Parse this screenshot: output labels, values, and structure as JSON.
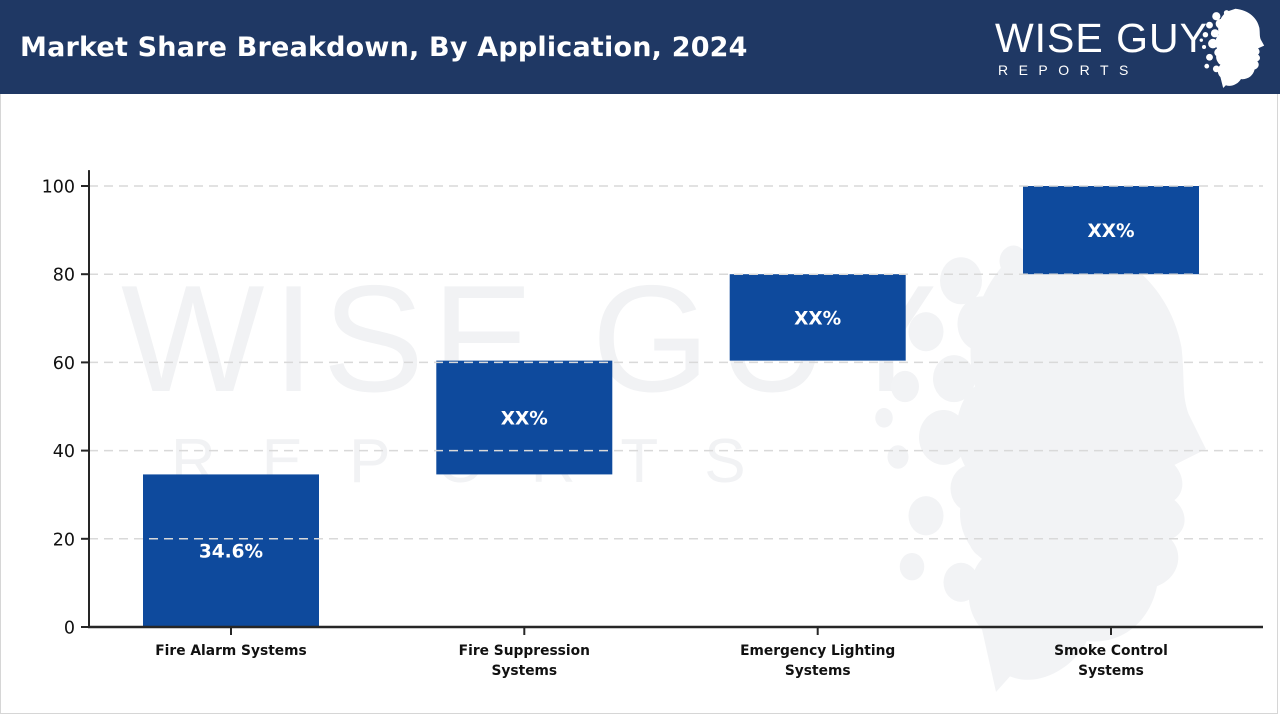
{
  "header": {
    "title": "Market Share Breakdown, By Application, 2024",
    "bg_color": "#1f3864",
    "text_color": "#ffffff",
    "brand": {
      "name": "WISE GUY",
      "sub": "REPORTS",
      "logo_icon": "dotted-head-profile-icon"
    }
  },
  "watermark": {
    "line1": "WISE GUY",
    "line2": "REPORTS",
    "color": "#f1f2f4"
  },
  "chart_data": {
    "type": "bar",
    "subtype": "waterfall-floating-bars",
    "title": "Market Share Breakdown, By Application, 2024",
    "categories": [
      "Fire Alarm Systems",
      "Fire Suppression Systems",
      "Emergency Lighting Systems",
      "Smoke Control Systems"
    ],
    "category_label_lines": [
      [
        "Fire Alarm Systems"
      ],
      [
        "Fire Suppression",
        "Systems"
      ],
      [
        "Emergency Lighting",
        "Systems"
      ],
      [
        "Smoke Control",
        "Systems"
      ]
    ],
    "segments": [
      {
        "category": "Fire Alarm Systems",
        "start": 0,
        "end": 34.6,
        "label": "34.6%"
      },
      {
        "category": "Fire Suppression Systems",
        "start": 34.6,
        "end": 60.4,
        "label": "XX%"
      },
      {
        "category": "Emergency Lighting Systems",
        "start": 60.4,
        "end": 80.0,
        "label": "XX%"
      },
      {
        "category": "Smoke Control Systems",
        "start": 80.0,
        "end": 100.0,
        "label": "XX%"
      },
      {
        "note": "XX% bars are masked values in source image"
      }
    ],
    "yticks": [
      0,
      20,
      40,
      60,
      80,
      100
    ],
    "ylim": [
      0,
      103.6
    ],
    "xlabel": "",
    "ylabel": "",
    "legend": "none",
    "grid": "horizontal dashed, drawn over bars",
    "bar_color": "#0e4a9d",
    "bar_label_color": "#ffffff",
    "axis_color": "#262626",
    "grid_color": "#d9d9d9",
    "tick_label_color": "#111111"
  }
}
